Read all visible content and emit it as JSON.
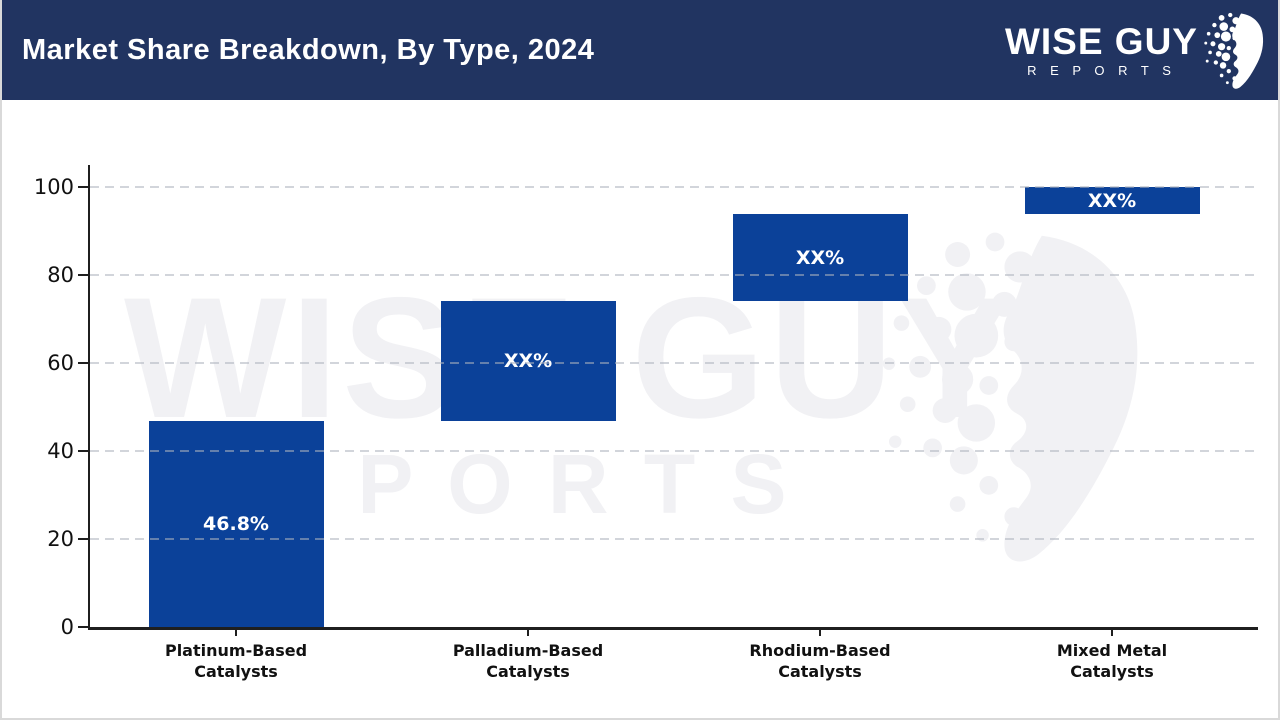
{
  "header": {
    "title": "Market Share Breakdown, By Type, 2024",
    "logo": {
      "name": "WISE GUY",
      "subtitle": "R E P O R T S"
    }
  },
  "colors": {
    "header_bg": "#213461",
    "bar": "#0b4199",
    "axis": "#1f1f1f",
    "grid": "#aeb3bd",
    "watermark": "#f1f1f4",
    "title_text": "#ffffff",
    "bar_label_text": "#ffffff"
  },
  "chart_data": {
    "type": "bar",
    "subtype": "waterfall-cumulative",
    "title": "Market Share Breakdown, By Type, 2024",
    "categories": [
      [
        "Platinum-Based",
        "Catalysts"
      ],
      [
        "Palladium-Based",
        "Catalysts"
      ],
      [
        "Rhodium-Based",
        "Catalysts"
      ],
      [
        "Mixed Metal",
        "Catalysts"
      ]
    ],
    "segments": [
      {
        "category": "Platinum-Based Catalysts",
        "label": "46.8%",
        "start": 0,
        "end": 46.8
      },
      {
        "category": "Palladium-Based Catalysts",
        "label": "XX%",
        "start": 46.8,
        "end": 74.1
      },
      {
        "category": "Rhodium-Based Catalysts",
        "label": "XX%",
        "start": 74.1,
        "end": 93.8
      },
      {
        "category": "Mixed Metal Catalysts",
        "label": "XX%",
        "start": 93.8,
        "end": 100
      }
    ],
    "yticks": [
      0,
      20,
      40,
      60,
      80,
      100
    ],
    "ylim": [
      0,
      105
    ],
    "xlabel": "",
    "ylabel": "",
    "grid": {
      "axis": "y",
      "style": "dashed",
      "drawn_over_bars": true
    },
    "legend": "none",
    "watermark": {
      "line1": "WISE GUY",
      "line2": "R E P O R T S"
    }
  }
}
